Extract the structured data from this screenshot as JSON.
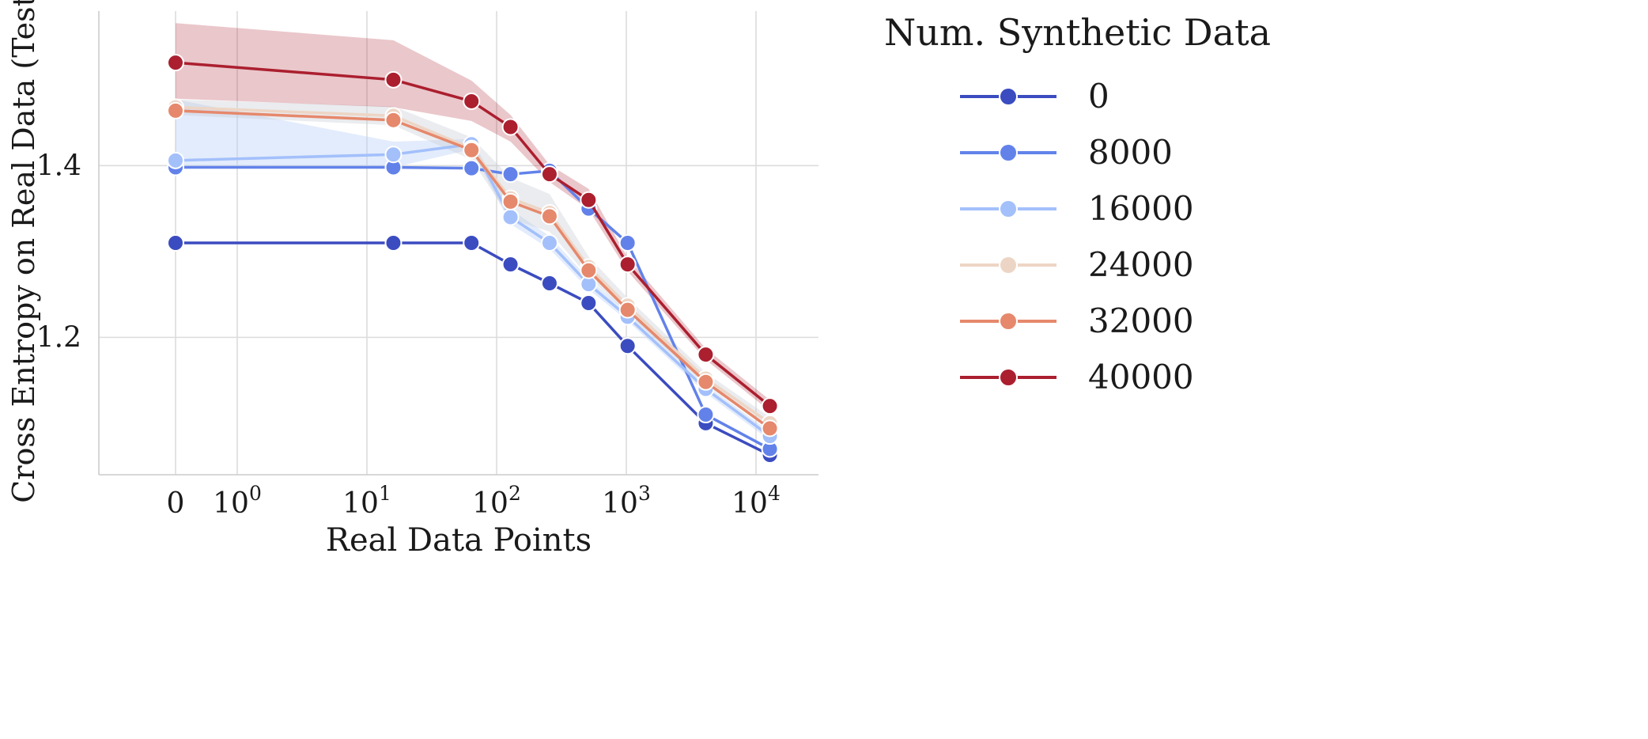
{
  "axes": {
    "xlabel": "Real Data Points",
    "ylabel": "Cross Entropy on Real Data (Test)"
  },
  "legend": {
    "title": "Num. Synthetic Data"
  },
  "chart_data": {
    "type": "line",
    "title": "",
    "xlabel": "Real Data Points",
    "ylabel": "Cross Entropy on Real Data (Test)",
    "x_scale": "symlog",
    "grid": true,
    "legend_position": "right",
    "legend_title": "Num. Synthetic Data",
    "x": [
      0,
      16,
      64,
      128,
      256,
      512,
      1024,
      4096,
      12800
    ],
    "xticks": [
      {
        "value": 0,
        "label": "0"
      },
      {
        "value": 1,
        "base": "10",
        "exp": "0"
      },
      {
        "value": 10,
        "base": "10",
        "exp": "1"
      },
      {
        "value": 100,
        "base": "10",
        "exp": "2"
      },
      {
        "value": 1000,
        "base": "10",
        "exp": "3"
      },
      {
        "value": 10000,
        "base": "10",
        "exp": "4"
      }
    ],
    "yticks": [
      {
        "value": 1.2,
        "label": "1.2"
      },
      {
        "value": 1.4,
        "label": "1.4"
      }
    ],
    "ylim": [
      1.04,
      1.58
    ],
    "grid_color": "#dcdcdc",
    "spine_color": "#cccccc",
    "text_color": "#1a1a1a",
    "series": [
      {
        "name": "0",
        "color": "#3b4cc0",
        "values": [
          1.31,
          1.31,
          1.31,
          1.285,
          1.263,
          1.24,
          1.19,
          1.1,
          1.063
        ]
      },
      {
        "name": "8000",
        "color": "#6282ea",
        "values": [
          1.398,
          1.398,
          1.397,
          1.39,
          1.394,
          1.35,
          1.31,
          1.11,
          1.07
        ]
      },
      {
        "name": "16000",
        "color": "#a3c0fb",
        "values": [
          1.406,
          1.413,
          1.425,
          1.34,
          1.31,
          1.262,
          1.224,
          1.14,
          1.085
        ],
        "band_lo": [
          1.4,
          1.398,
          1.419,
          1.332,
          1.303,
          1.256,
          1.219,
          1.135,
          1.08
        ],
        "band_hi": [
          1.477,
          1.428,
          1.431,
          1.349,
          1.318,
          1.268,
          1.23,
          1.145,
          1.09
        ],
        "band_color": "#b9d0f7",
        "band_opacity": 0.4
      },
      {
        "name": "24000",
        "color": "#edd5c5",
        "values": [
          1.468,
          1.458,
          1.42,
          1.362,
          1.345,
          1.282,
          1.237,
          1.152,
          1.1
        ],
        "band_lo": [
          1.459,
          1.447,
          1.407,
          1.338,
          1.323,
          1.27,
          1.228,
          1.145,
          1.093
        ],
        "band_hi": [
          1.477,
          1.469,
          1.433,
          1.386,
          1.367,
          1.294,
          1.246,
          1.159,
          1.107
        ],
        "band_color": "#c4c8d0",
        "band_opacity": 0.35
      },
      {
        "name": "32000",
        "color": "#e6886c",
        "values": [
          1.464,
          1.453,
          1.418,
          1.358,
          1.341,
          1.278,
          1.232,
          1.148,
          1.094
        ]
      },
      {
        "name": "40000",
        "color": "#ab1f2f",
        "values": [
          1.52,
          1.5,
          1.475,
          1.445,
          1.39,
          1.36,
          1.285,
          1.18,
          1.12
        ],
        "band_lo": [
          1.478,
          1.468,
          1.452,
          1.428,
          1.381,
          1.349,
          1.277,
          1.174,
          1.114
        ],
        "band_hi": [
          1.566,
          1.546,
          1.499,
          1.459,
          1.401,
          1.373,
          1.293,
          1.187,
          1.127
        ],
        "band_color": "#ab1f2f",
        "band_opacity": 0.25
      }
    ]
  }
}
